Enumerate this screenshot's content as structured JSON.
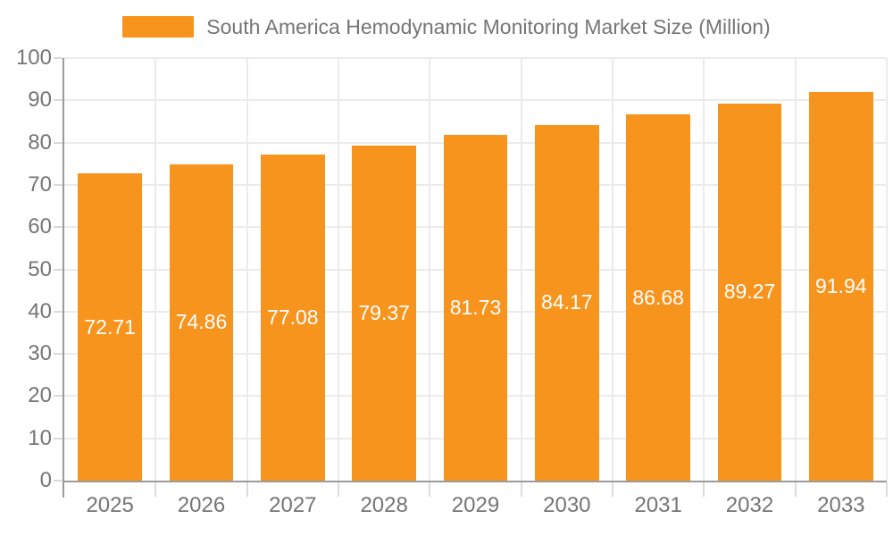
{
  "legend": {
    "label": "South America Hemodynamic Monitoring Market Size (Million)",
    "swatch_color": "#F7941E"
  },
  "chart_data": {
    "type": "bar",
    "title": "South America Hemodynamic Monitoring Market Size (Million)",
    "categories": [
      "2025",
      "2026",
      "2027",
      "2028",
      "2029",
      "2030",
      "2031",
      "2032",
      "2033"
    ],
    "values": [
      72.71,
      74.86,
      77.08,
      79.37,
      81.73,
      84.17,
      86.68,
      89.27,
      91.94
    ],
    "value_labels": [
      "72.71",
      "74.86",
      "77.08",
      "79.37",
      "81.73",
      "84.17",
      "86.68",
      "89.27",
      "91.94"
    ],
    "xlabel": "",
    "ylabel": "",
    "ylim": [
      0,
      100
    ],
    "yticks": [
      0,
      10,
      20,
      30,
      40,
      50,
      60,
      70,
      80,
      90,
      100
    ],
    "grid": true,
    "legend_position": "top-center",
    "bar_color": "#F7941E",
    "bar_label_color": "#ffffff",
    "axis_line_color": "#9b9b9b",
    "gridline_color": "#ebebeb",
    "tick_label_color": "#757575",
    "bar_width_fraction": 0.7
  }
}
